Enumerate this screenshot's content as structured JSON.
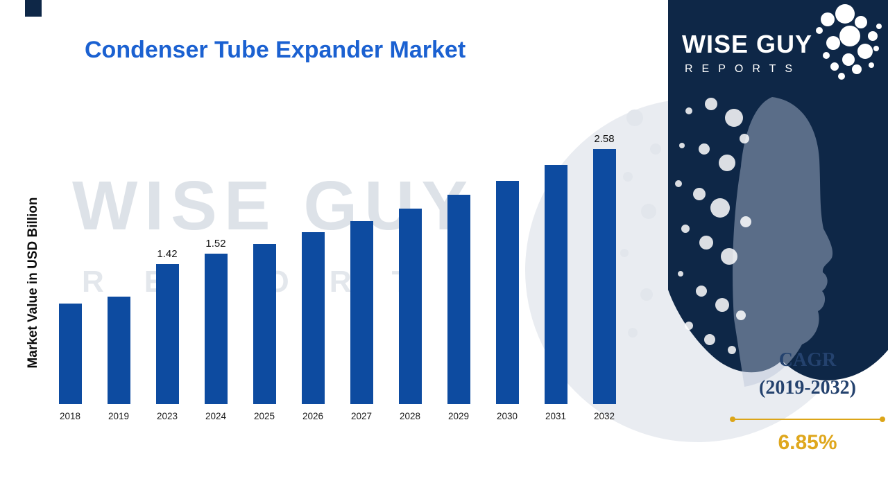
{
  "page": {
    "title": "Condenser Tube Expander Market"
  },
  "logo": {
    "line1": "WISE GUY",
    "line2": "REPORTS"
  },
  "watermark": {
    "line1": "WISE GUY",
    "line2": "REPORTS"
  },
  "cagr": {
    "label": "CAGR",
    "range": "(2019-2032)",
    "value": "6.85%"
  },
  "colors": {
    "title_blue": "#1b61d1",
    "bar_blue": "#0d4ba0",
    "panel_navy": "#0e2747",
    "gold": "#dca518",
    "cagr_text_navy": "#24426e"
  },
  "chart_data": {
    "type": "bar",
    "title": "Condenser Tube Expander Market",
    "xlabel": "",
    "ylabel": "Market Value in USD Billion",
    "unit": "USD Billion",
    "categories": [
      "2018",
      "2019",
      "2023",
      "2024",
      "2025",
      "2026",
      "2027",
      "2028",
      "2029",
      "2030",
      "2031",
      "2032"
    ],
    "values": [
      1.02,
      1.09,
      1.42,
      1.52,
      1.62,
      1.74,
      1.85,
      1.98,
      2.12,
      2.26,
      2.42,
      2.58
    ],
    "point_labels": [
      "",
      "",
      "1.42",
      "1.52",
      "",
      "",
      "",
      "",
      "",
      "",
      "",
      "2.58"
    ],
    "ylim": [
      0,
      2.9
    ],
    "grid": false,
    "legend": false,
    "bar_color": "#0d4ba0"
  }
}
